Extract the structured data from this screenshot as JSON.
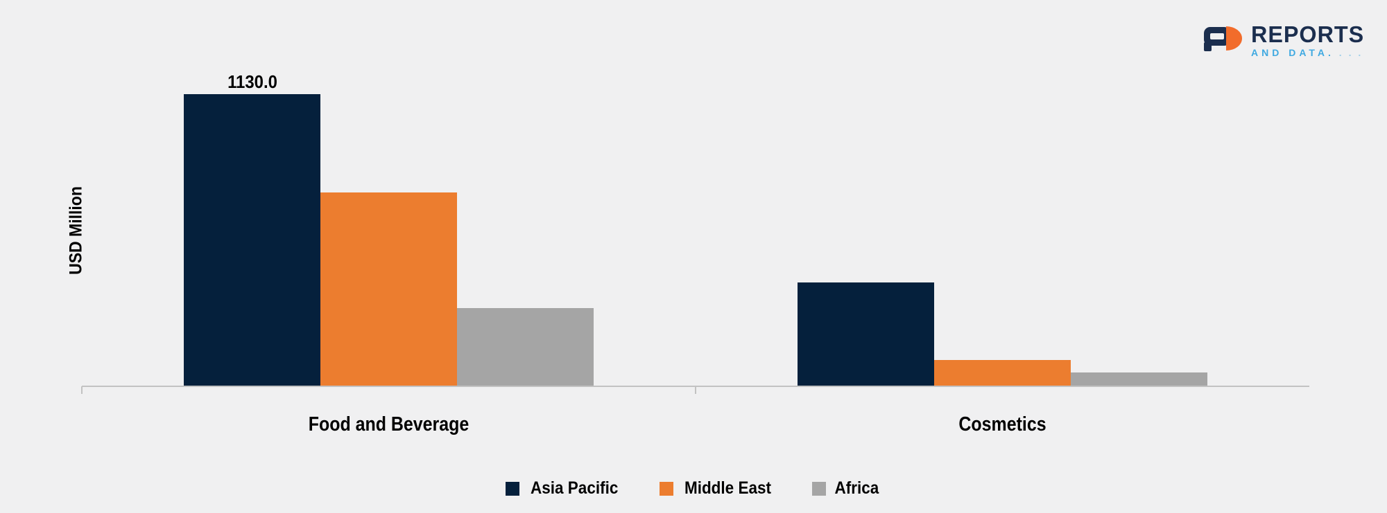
{
  "logo": {
    "title": "REPORTS",
    "subtitle": "AND DATA.",
    "subtitle_dots": " . . .",
    "colors": {
      "navy": "#1B2E4E",
      "orange": "#F26C2B",
      "blue": "#3FA9E1"
    }
  },
  "chart_data": {
    "type": "bar",
    "title": "",
    "categories": [
      "Food and Beverage",
      "Cosmetics"
    ],
    "series": [
      {
        "name": "Asia Pacific",
        "color": "#05203C",
        "values": [
          1130.0,
          400.0
        ],
        "labels": [
          "1130.0",
          null
        ]
      },
      {
        "name": "Middle East",
        "color": "#EC7D2F",
        "values": [
          750.0,
          100.0
        ],
        "labels": [
          null,
          null
        ]
      },
      {
        "name": "Africa",
        "color": "#A5A5A5",
        "values": [
          300.0,
          50.0
        ],
        "labels": [
          null,
          null
        ]
      }
    ],
    "xlabel": "",
    "ylabel": "USD Million",
    "ylim": [
      0,
      1250
    ],
    "y_axis_ticks_shown": false,
    "grid": false,
    "legend_position": "bottom",
    "background_color": "#F0F0F1",
    "axis_color": "#C2C2C2"
  }
}
